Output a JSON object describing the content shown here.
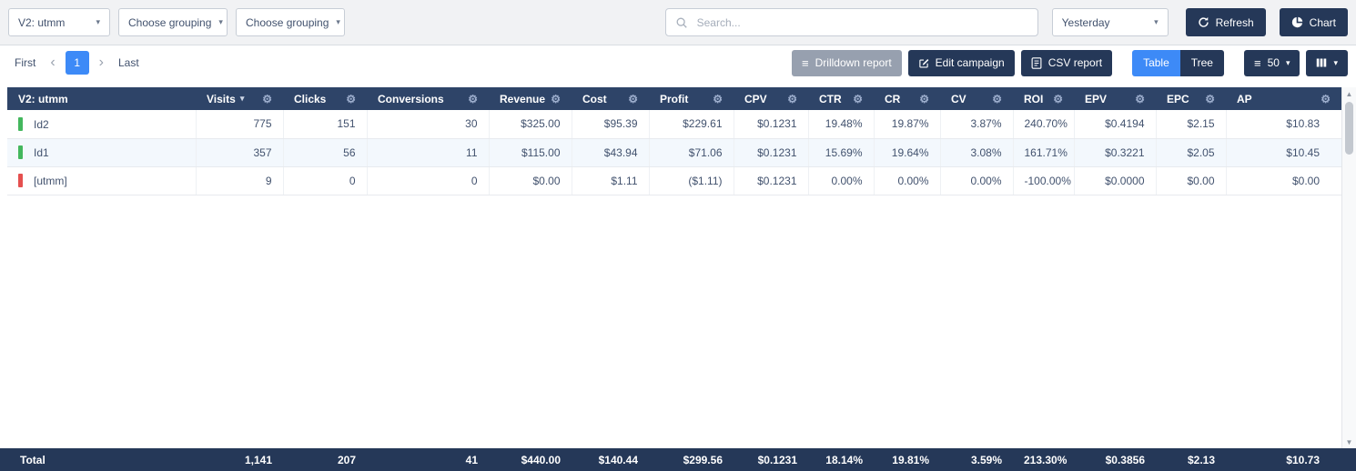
{
  "toolbar": {
    "campaign_dropdown": "V2: utmm",
    "grouping_dropdown_1": "Choose grouping",
    "grouping_dropdown_2": "Choose grouping",
    "search_placeholder": "Search...",
    "date_dropdown": "Yesterday",
    "refresh_button": "Refresh",
    "chart_button": "Chart"
  },
  "pagination": {
    "first_label": "First",
    "current_page": "1",
    "last_label": "Last"
  },
  "actions": {
    "drilldown_button": "Drilldown report",
    "edit_campaign_button": "Edit campaign",
    "csv_button": "CSV report",
    "table_toggle": "Table",
    "tree_toggle": "Tree",
    "page_size": "50"
  },
  "colors": {
    "navy": "#253858",
    "header_navy": "#2e4468",
    "accent_blue": "#3d8af7",
    "positive_green": "#28a745",
    "negative_red": "#e5504f",
    "total_green": "#2ed573"
  },
  "table": {
    "columns": [
      {
        "label": "V2: utmm",
        "gear": false,
        "sorted": false
      },
      {
        "label": "Visits",
        "gear": true,
        "sorted": true
      },
      {
        "label": "Clicks",
        "gear": true,
        "sorted": false
      },
      {
        "label": "Conversions",
        "gear": true,
        "sorted": false
      },
      {
        "label": "Revenue",
        "gear": true,
        "sorted": false
      },
      {
        "label": "Cost",
        "gear": true,
        "sorted": false
      },
      {
        "label": "Profit",
        "gear": true,
        "sorted": false
      },
      {
        "label": "CPV",
        "gear": true,
        "sorted": false
      },
      {
        "label": "CTR",
        "gear": true,
        "sorted": false
      },
      {
        "label": "CR",
        "gear": true,
        "sorted": false
      },
      {
        "label": "CV",
        "gear": true,
        "sorted": false
      },
      {
        "label": "ROI",
        "gear": true,
        "sorted": false
      },
      {
        "label": "EPV",
        "gear": true,
        "sorted": false
      },
      {
        "label": "EPC",
        "gear": true,
        "sorted": false
      },
      {
        "label": "AP",
        "gear": true,
        "sorted": false
      }
    ],
    "rows": [
      {
        "status": "green",
        "cells": [
          "Id2",
          "775",
          "151",
          "30",
          "$325.00",
          "$95.39",
          "$229.61",
          "$0.1231",
          "19.48%",
          "19.87%",
          "3.87%",
          "240.70%",
          "$0.4194",
          "$2.15",
          "$10.83"
        ],
        "colored": {
          "6": "green",
          "11": "green"
        }
      },
      {
        "status": "green",
        "cells": [
          "Id1",
          "357",
          "56",
          "11",
          "$115.00",
          "$43.94",
          "$71.06",
          "$0.1231",
          "15.69%",
          "19.64%",
          "3.08%",
          "161.71%",
          "$0.3221",
          "$2.05",
          "$10.45"
        ],
        "colored": {
          "6": "green",
          "11": "green"
        }
      },
      {
        "status": "red",
        "cells": [
          "[utmm]",
          "9",
          "0",
          "0",
          "$0.00",
          "$1.11",
          "($1.11)",
          "$0.1231",
          "0.00%",
          "0.00%",
          "0.00%",
          "-100.00%",
          "$0.0000",
          "$0.00",
          "$0.00"
        ],
        "colored": {
          "6": "red",
          "11": "red"
        }
      }
    ],
    "total": {
      "cells": [
        "Total",
        "1,141",
        "207",
        "41",
        "$440.00",
        "$140.44",
        "$299.56",
        "$0.1231",
        "18.14%",
        "19.81%",
        "3.59%",
        "213.30%",
        "$0.3856",
        "$2.13",
        "$10.73"
      ],
      "colored": {
        "6": "green",
        "11": "green"
      }
    }
  }
}
